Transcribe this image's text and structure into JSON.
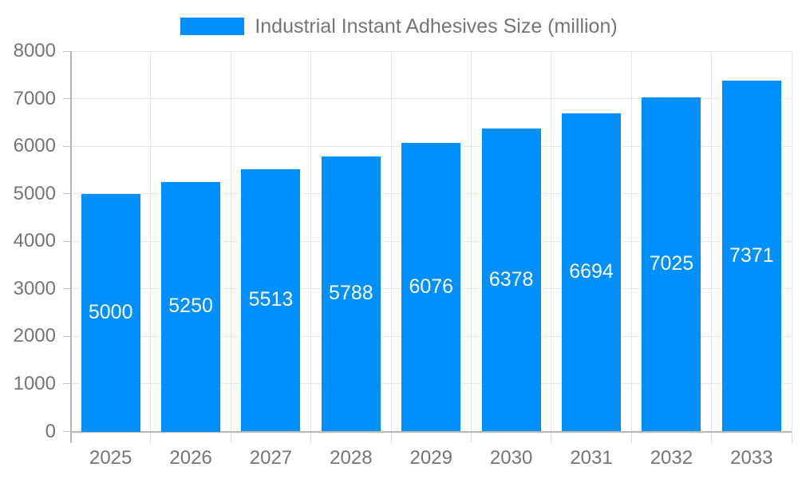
{
  "chart_data": {
    "type": "bar",
    "title": "",
    "categories": [
      "2025",
      "2026",
      "2027",
      "2028",
      "2029",
      "2030",
      "2031",
      "2032",
      "2033"
    ],
    "series": [
      {
        "name": "Industrial Instant Adhesives Size (million)",
        "values": [
          5000,
          5250,
          5513,
          5788,
          6076,
          6378,
          6694,
          7025,
          7371
        ]
      }
    ],
    "ylim": [
      0,
      8000
    ],
    "yticks": [
      0,
      1000,
      2000,
      3000,
      4000,
      5000,
      6000,
      7000,
      8000
    ],
    "grid": "on",
    "legend_position": "top-center",
    "bar_label_position": "inside-center"
  },
  "colors": {
    "bar": "#008ffb",
    "bar_value_label": "#ffffff",
    "grid_line": "#e6e6e6",
    "axis_line": "#b6b6b6",
    "tick_y": "#c2c2c2",
    "tick_x": "#d9d9d9",
    "axis_text": "#757575",
    "background": "#ffffff"
  }
}
